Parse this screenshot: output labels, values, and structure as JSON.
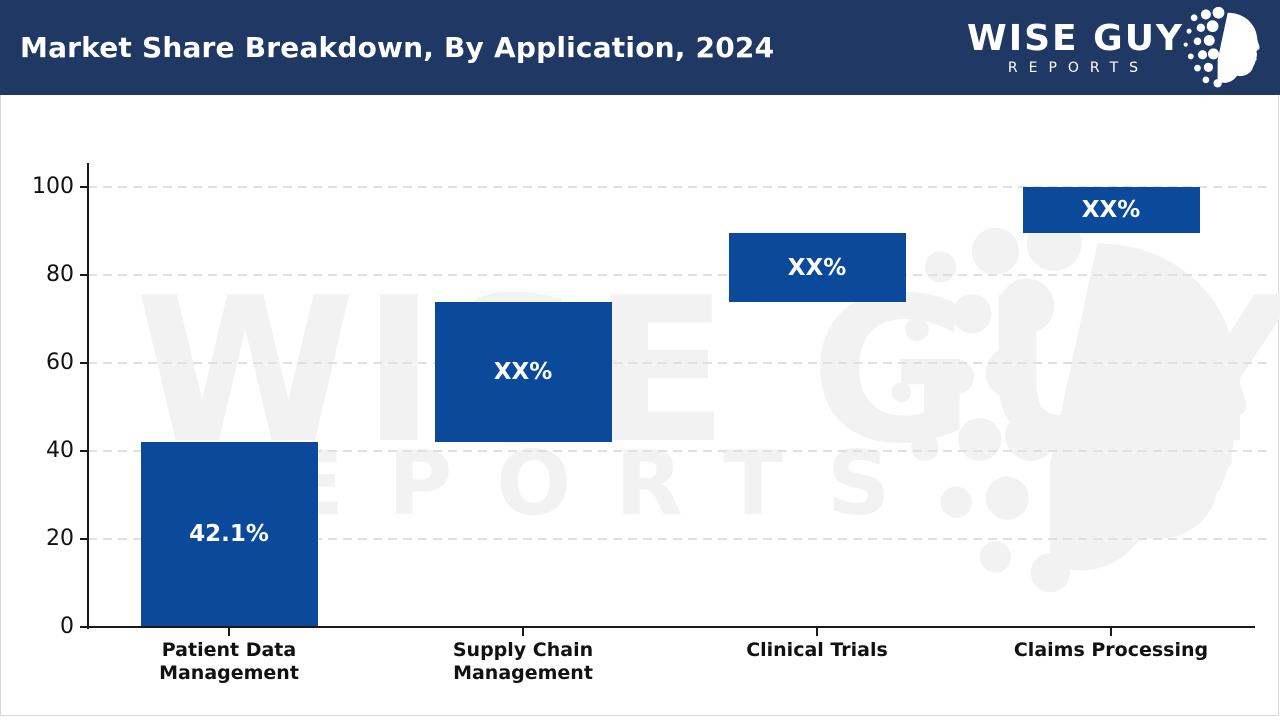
{
  "header": {
    "title": "Market Share Breakdown, By Application, 2024",
    "bg_color": "#1f3864",
    "brand": {
      "line1": "WISE GUY",
      "line2": "REPORTS"
    }
  },
  "watermark": {
    "line1": "WISE GUY",
    "line2": "REPORTS"
  },
  "chart_data": {
    "type": "bar",
    "subtype": "waterfall",
    "title": "Market Share Breakdown, By Application, 2024",
    "categories": [
      "Patient Data\nManagement",
      "Supply Chain\nManagement",
      "Clinical Trials",
      "Claims Processing"
    ],
    "segments": [
      {
        "category": "Patient Data Management",
        "start": 0,
        "end": 42.1,
        "label": "42.1%"
      },
      {
        "category": "Supply Chain Management",
        "start": 42.1,
        "end": 73.9,
        "label": "XX%"
      },
      {
        "category": "Clinical Trials",
        "start": 73.9,
        "end": 89.5,
        "label": "XX%"
      },
      {
        "category": "Claims Processing",
        "start": 89.5,
        "end": 100,
        "label": "XX%"
      }
    ],
    "xlabel": "",
    "ylabel": "",
    "ylim": [
      0,
      100
    ],
    "yticks": [
      0,
      20,
      40,
      60,
      80,
      100
    ],
    "grid": "horizontal-dashed",
    "legend": "none",
    "bar_color": "#0b4a9b",
    "bar_label_color": "#ffffff",
    "axis_color": "#1a1a1a"
  }
}
